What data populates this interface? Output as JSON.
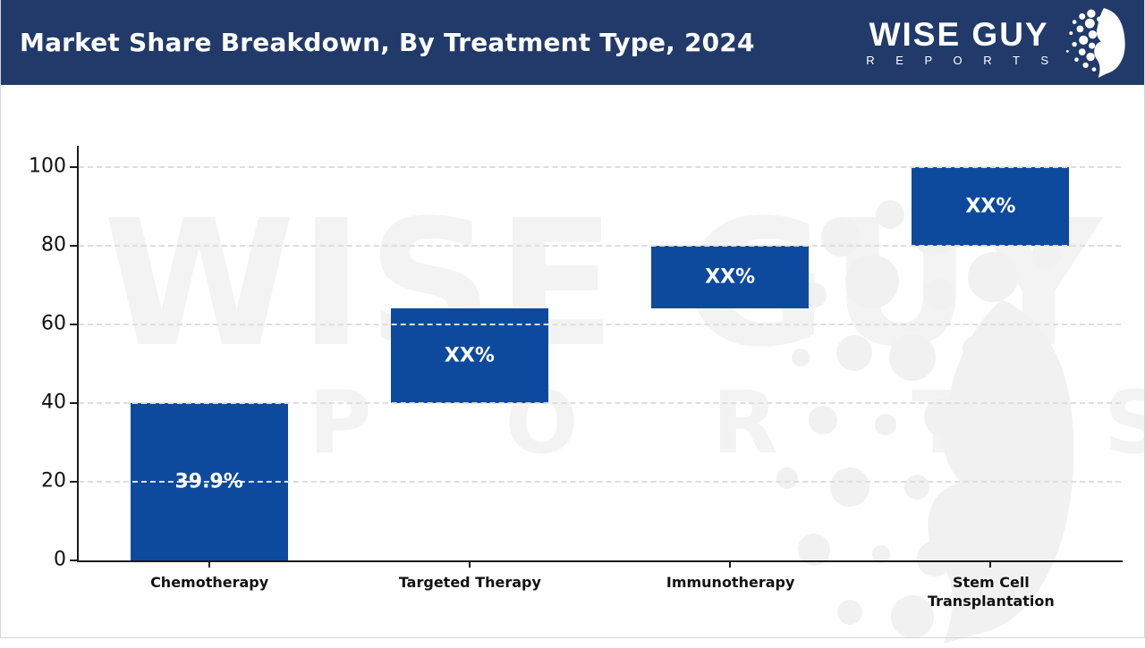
{
  "header": {
    "title": "Market Share Breakdown, By Treatment Type, 2024",
    "bg_color": "#213a69",
    "logo": {
      "line1": "WISE GUY",
      "line2": "R E P O R T S"
    }
  },
  "watermark": {
    "line1": "WISE GUY",
    "line2": "P O R T S"
  },
  "chart_data": {
    "type": "bar",
    "subtype": "waterfall",
    "title": "Market Share Breakdown, By Treatment Type, 2024",
    "categories": [
      "Chemotherapy",
      "Targeted Therapy",
      "Immunotherapy",
      "Stem Cell Transplantation"
    ],
    "segments": [
      {
        "category": "Chemotherapy",
        "start": 0,
        "end": 39.9,
        "value": 39.9,
        "label": "39.9%"
      },
      {
        "category": "Targeted Therapy",
        "start": 39.9,
        "end": 64,
        "value": 24.1,
        "label": "XX%"
      },
      {
        "category": "Immunotherapy",
        "start": 64,
        "end": 80,
        "value": 16,
        "label": "XX%"
      },
      {
        "category": "Stem Cell Transplantation",
        "start": 80,
        "end": 100,
        "value": 20,
        "label": "XX%"
      }
    ],
    "yticks": [
      0,
      20,
      40,
      60,
      80,
      100
    ],
    "ylim": [
      0,
      100
    ],
    "xlabel": "",
    "ylabel": "",
    "grid": "horizontal-dashed-over-bars",
    "legend": "none",
    "bar_color": "#0d4a9d",
    "bar_label_color": "#ffffff",
    "axis_color": "#1a1a1a"
  }
}
